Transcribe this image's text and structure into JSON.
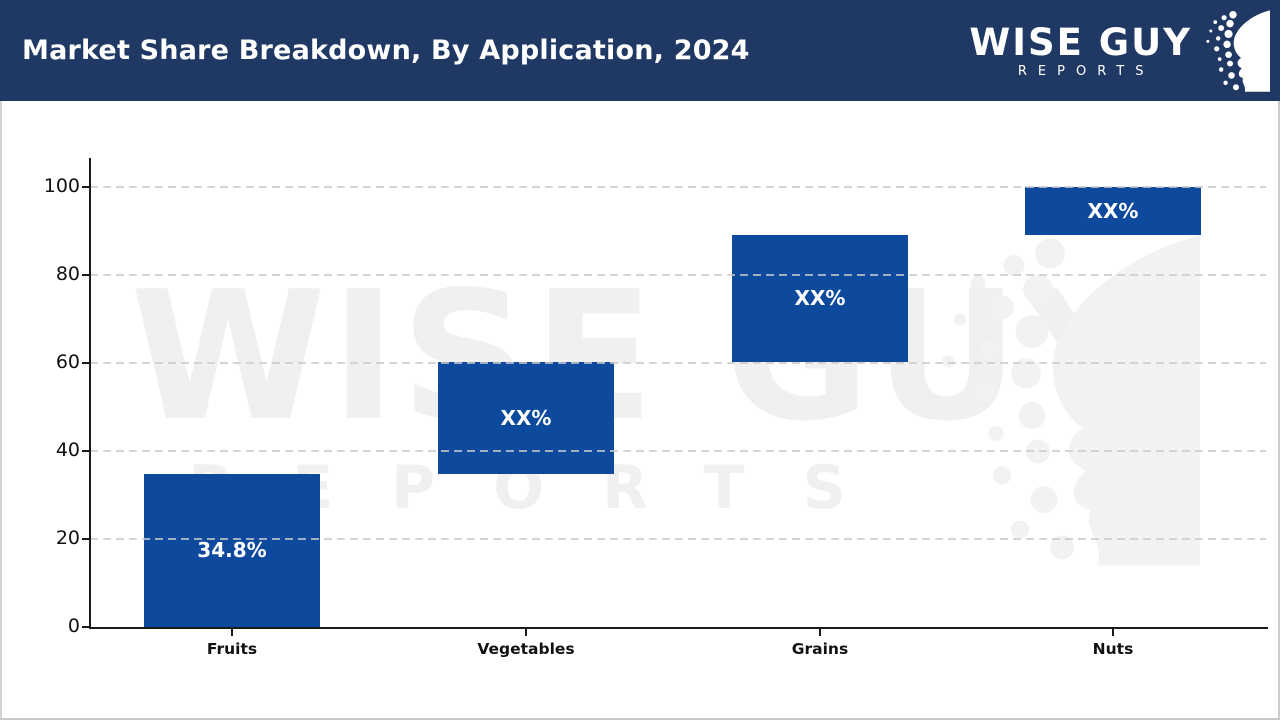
{
  "header": {
    "title": "Market Share Breakdown, By Application, 2024",
    "logo": {
      "line1": "WISE GUY",
      "line2": "REPORTS"
    }
  },
  "watermark": {
    "line1": "WISE GUY",
    "line2": "REPORTS"
  },
  "chart_data": {
    "type": "bar",
    "subtype": "waterfall",
    "title": "Market Share Breakdown, By Application, 2024",
    "xlabel": "",
    "ylabel": "",
    "categories": [
      "Fruits",
      "Vegetables",
      "Grains",
      "Nuts"
    ],
    "segments": [
      {
        "category": "Fruits",
        "start": 0,
        "end": 34.8,
        "label": "34.8%"
      },
      {
        "category": "Vegetables",
        "start": 34.8,
        "end": 60.3,
        "label": "XX%"
      },
      {
        "category": "Grains",
        "start": 60.3,
        "end": 89.1,
        "label": "XX%"
      },
      {
        "category": "Nuts",
        "start": 89.1,
        "end": 100,
        "label": "XX%"
      }
    ],
    "yticks": [
      0,
      20,
      40,
      60,
      80,
      100
    ],
    "ylim": [
      0,
      105.5
    ],
    "grid": true,
    "grid_style": "dashed",
    "legend": false,
    "bar_color": "#0d4a9e",
    "bar_label_color": "#ffffff"
  },
  "colors": {
    "header_background": "#1f3864",
    "header_text": "#ffffff",
    "watermark": "#f0f0f0",
    "axis": "#1a1a1a",
    "gridline": "#cacaca",
    "page_border": "#cccccc"
  }
}
